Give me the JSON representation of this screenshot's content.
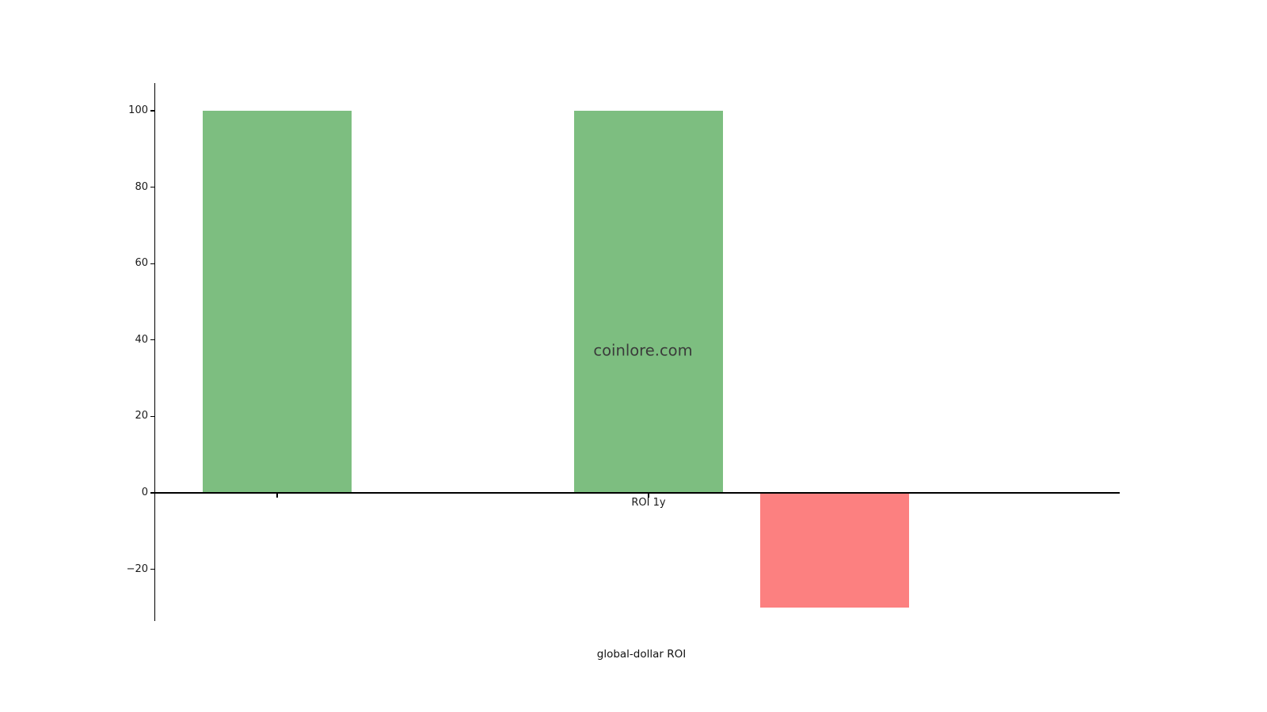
{
  "chart_data": {
    "type": "bar",
    "title": "",
    "xlabel": "global-dollar ROI",
    "ylabel": "",
    "categories": [
      "",
      "ROI 1y",
      ""
    ],
    "values": [
      100,
      100,
      -30
    ],
    "bar_names": [
      "roi-bar-1",
      "roi-bar-2-roi-1y",
      "roi-bar-3"
    ],
    "bar_colors": [
      "#7dbe80",
      "#7dbe80",
      "#fc8080"
    ],
    "positive_color": "#7dbe80",
    "negative_color": "#fc8080",
    "yticks": [
      100,
      80,
      60,
      40,
      20,
      0,
      -20
    ],
    "ylim": [
      -33.5,
      107.3
    ],
    "grid": false,
    "legend": null,
    "watermark": "coinlore.com"
  },
  "colors": {
    "axis": "#000000",
    "tick_text": "#1a1a1a",
    "watermark_text": "#3a3a3a",
    "background": "#ffffff"
  }
}
